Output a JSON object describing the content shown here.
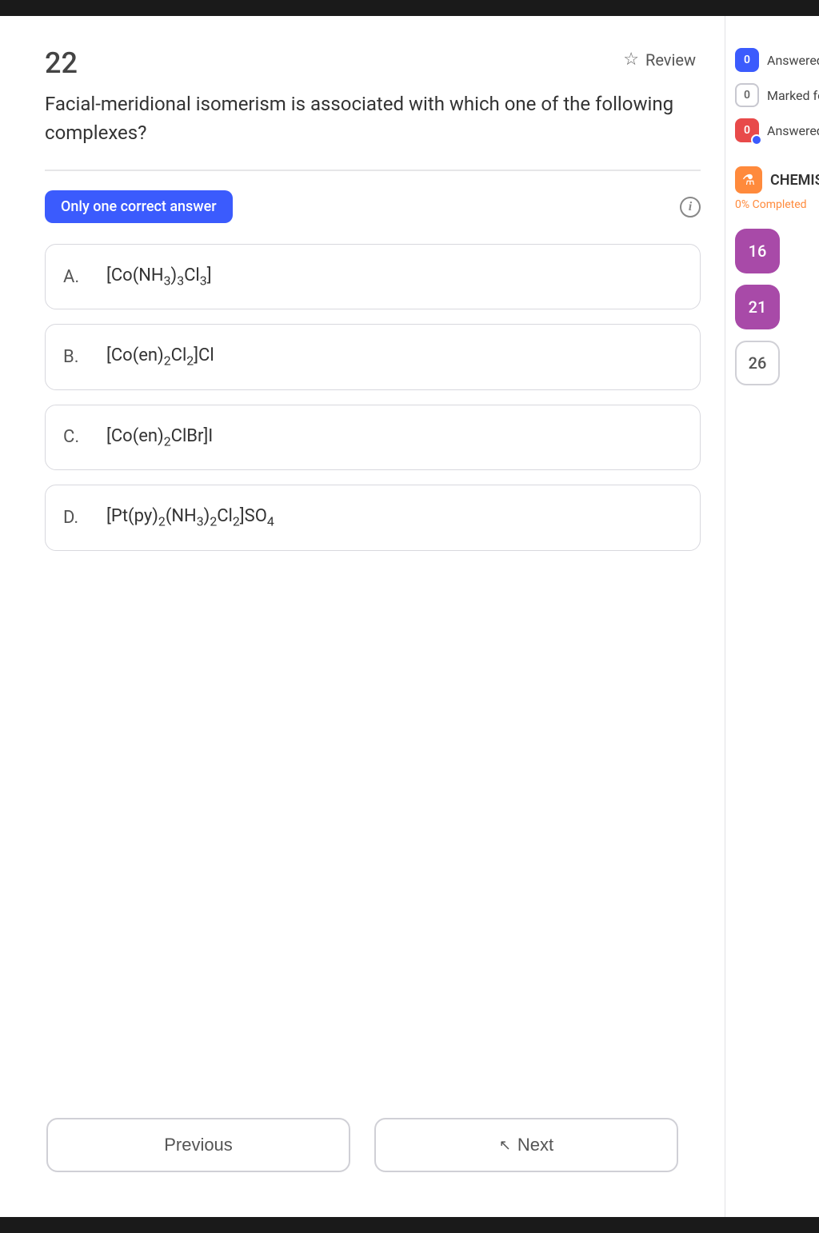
{
  "question": {
    "number": "22",
    "review_label": "Review",
    "text": "Facial-meridional isomerism is associated with which one of the following complexes?",
    "instruction": "Only one correct answer",
    "options": [
      {
        "letter": "A.",
        "html": "[Co(NH<span class='sub'>3</span>)<span class='sub'>3</span>Cl<span class='sub'>3</span>]"
      },
      {
        "letter": "B.",
        "html": "[Co(en)<span class='sub'>2</span>Cl<span class='sub'>2</span>]Cl"
      },
      {
        "letter": "C.",
        "html": "[Co(en)<span class='sub'>2</span>ClBr]I"
      },
      {
        "letter": "D.",
        "html": "[Pt(py)<span class='sub'>2</span>(NH<span class='sub'>3</span>)<span class='sub'>2</span>Cl<span class='sub'>2</span>]SO<span class='sub'>4</span>"
      }
    ]
  },
  "sidebar": {
    "legend": [
      {
        "count": "0",
        "label": "Answered",
        "style": "blue"
      },
      {
        "count": "0",
        "label": "Marked for Revi",
        "style": "outline"
      },
      {
        "count": "0",
        "label": "Answered and",
        "style": "red",
        "dot": true
      }
    ],
    "subject": {
      "label": "CHEMISTRY",
      "icon": "⚗"
    },
    "completed": "0% Completed",
    "grid": [
      [
        {
          "n": "16",
          "style": "purple"
        }
      ],
      [
        {
          "n": "21",
          "style": "purple"
        }
      ],
      [
        {
          "n": "26",
          "style": "grey"
        }
      ]
    ]
  },
  "nav": {
    "prev": "Previous",
    "next": "Next"
  },
  "colors": {
    "primary": "#3b5bfd",
    "purple": "#a84aa8",
    "orange": "#ff8a3c",
    "red": "#e84a4a"
  }
}
